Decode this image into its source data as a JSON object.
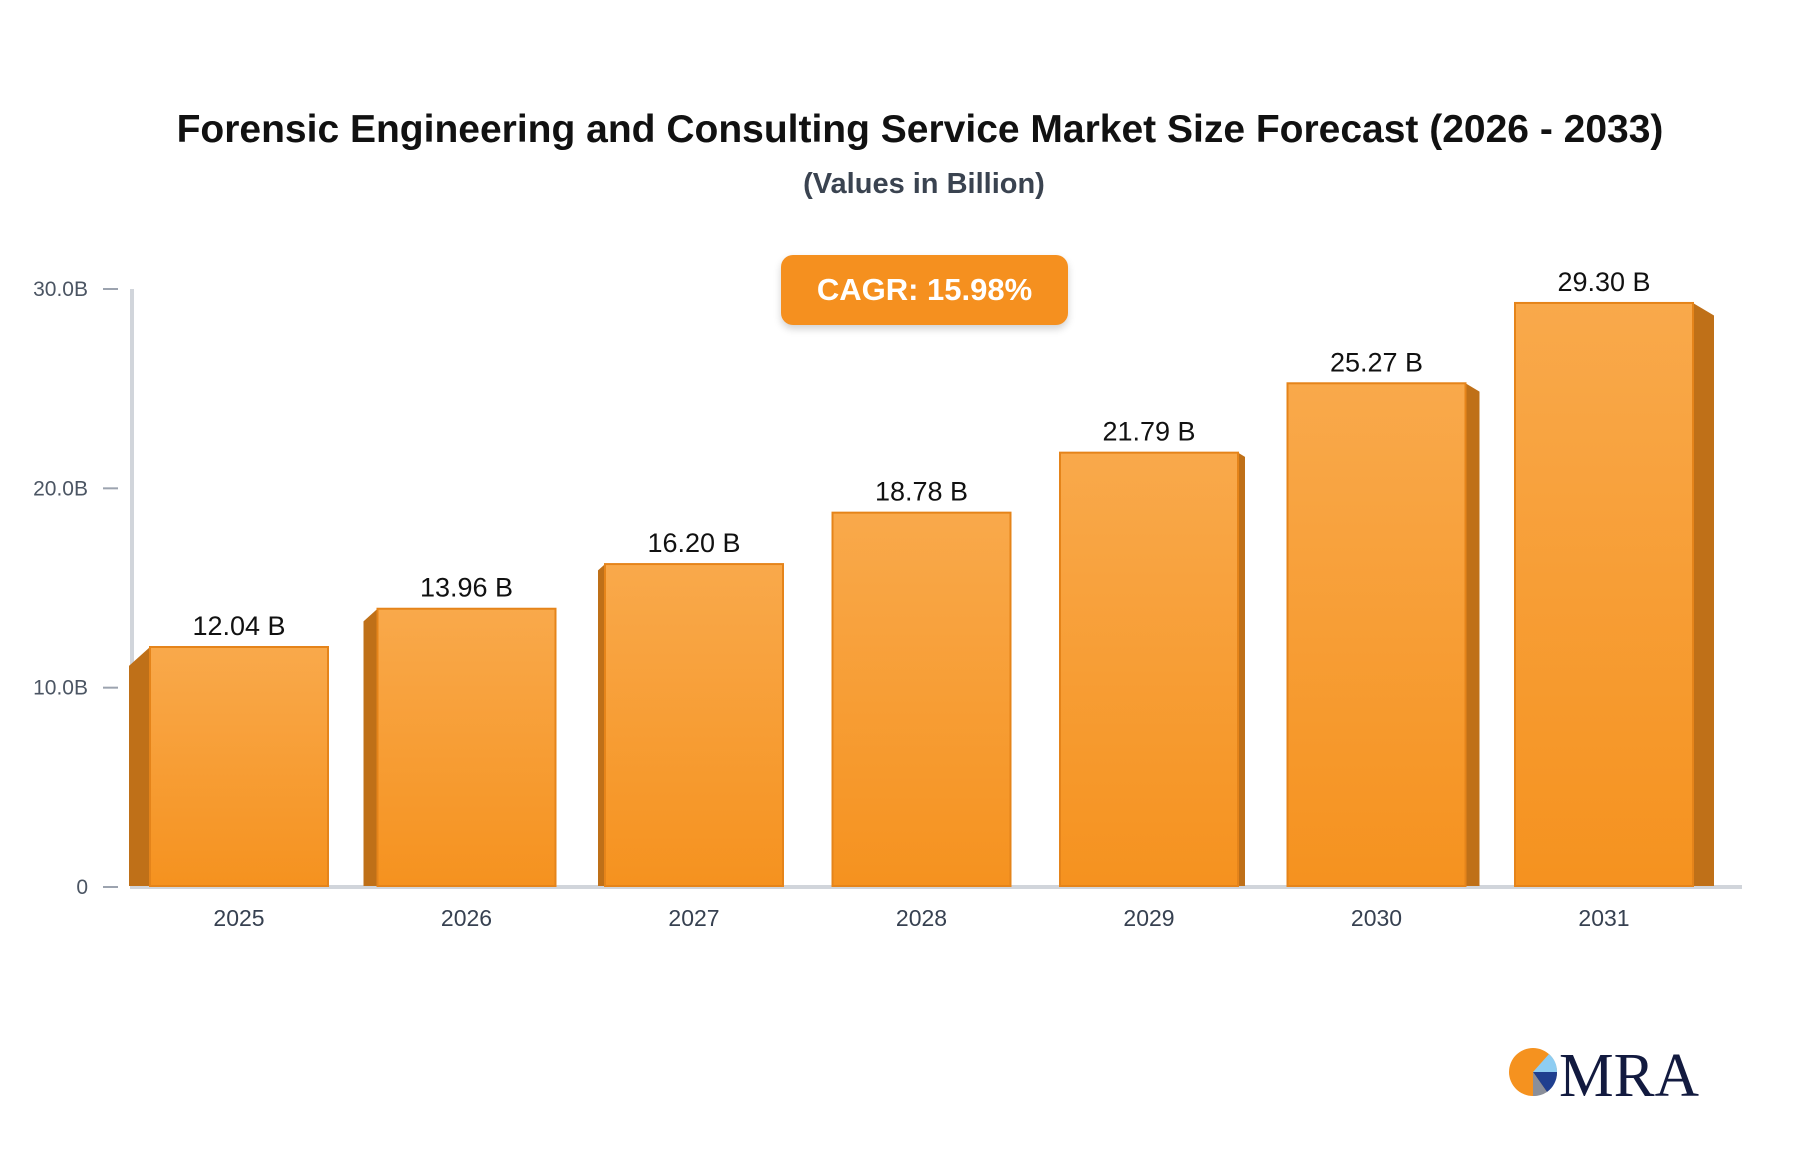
{
  "chart_data": {
    "type": "bar",
    "title": "Forensic Engineering and Consulting Service Market Size Forecast (2026 - 2033)",
    "subtitle": "(Values in Billion)",
    "annotation": "CAGR: 15.98%",
    "categories": [
      "2025",
      "2026",
      "2027",
      "2028",
      "2029",
      "2030",
      "2031"
    ],
    "values": [
      12.04,
      13.96,
      16.2,
      18.78,
      21.79,
      25.27,
      29.3
    ],
    "data_labels": [
      "12.04 B",
      "13.96 B",
      "16.20 B",
      "18.78 B",
      "21.79 B",
      "25.27 B",
      "29.30 B"
    ],
    "yticks": [
      0,
      10,
      20,
      30
    ],
    "ytick_labels": [
      "0",
      "10.0B",
      "20.0B",
      "30.0B"
    ],
    "ylim": [
      0,
      30
    ],
    "xlabel": "",
    "ylabel": "",
    "grid": false,
    "colors": {
      "bar_top": "#f9a94b",
      "bar_bottom": "#f5921f",
      "bar_side": "#bf7018",
      "bar_edge": "#e5841a",
      "axis": "#d1d5db",
      "badge": "#f5901f"
    }
  },
  "logo": {
    "text": "MRA"
  }
}
